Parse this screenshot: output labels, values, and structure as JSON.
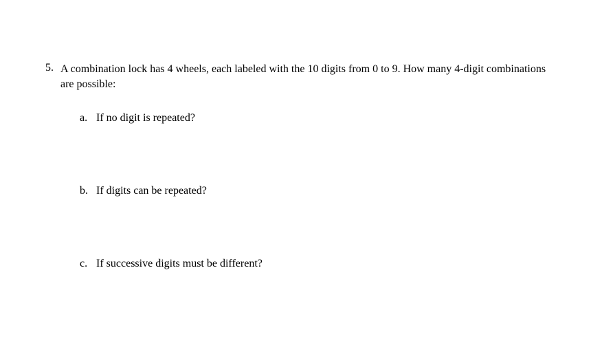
{
  "question": {
    "number": "5.",
    "text": "A combination lock has 4 wheels, each labeled with the 10 digits from 0 to 9.  How many 4-digit combinations are possible:",
    "subparts": [
      {
        "letter": "a.",
        "text": "If no digit is repeated?"
      },
      {
        "letter": "b.",
        "text": "If digits can be repeated?"
      },
      {
        "letter": "c.",
        "text": "If successive digits must be different?"
      }
    ]
  }
}
